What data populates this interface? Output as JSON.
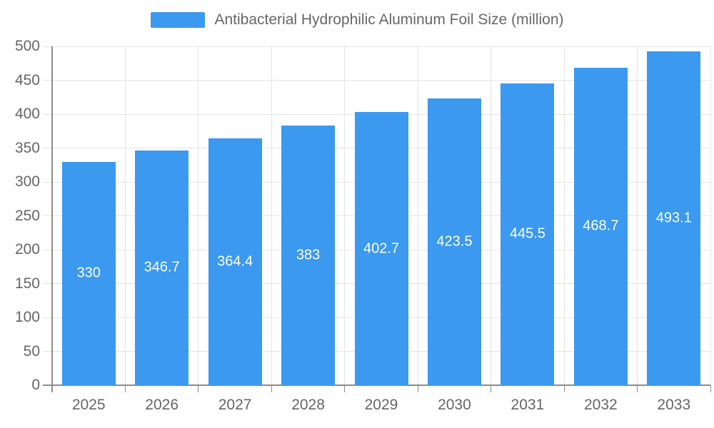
{
  "chart_data": {
    "type": "bar",
    "title": "Antibacterial Hydrophilic Aluminum Foil Size (million)",
    "legend_position": "top",
    "categories": [
      "2025",
      "2026",
      "2027",
      "2028",
      "2029",
      "2030",
      "2031",
      "2032",
      "2033"
    ],
    "values": [
      330,
      346.7,
      364.4,
      383,
      402.7,
      423.5,
      445.5,
      468.7,
      493.1
    ],
    "value_labels": [
      "330",
      "346.7",
      "364.4",
      "383",
      "402.7",
      "423.5",
      "445.5",
      "468.7",
      "493.1"
    ],
    "xlabel": "",
    "ylabel": "",
    "ylim": [
      0,
      500
    ],
    "ytick_step": 50,
    "grid": true,
    "colors": {
      "bar": "#3b99ef",
      "axis": "#8c8c8c",
      "gridline": "#e4e4e4",
      "tick_text": "#666666",
      "legend_text": "#666666",
      "value_label_text": "#ffffff",
      "background": "#ffffff"
    }
  }
}
